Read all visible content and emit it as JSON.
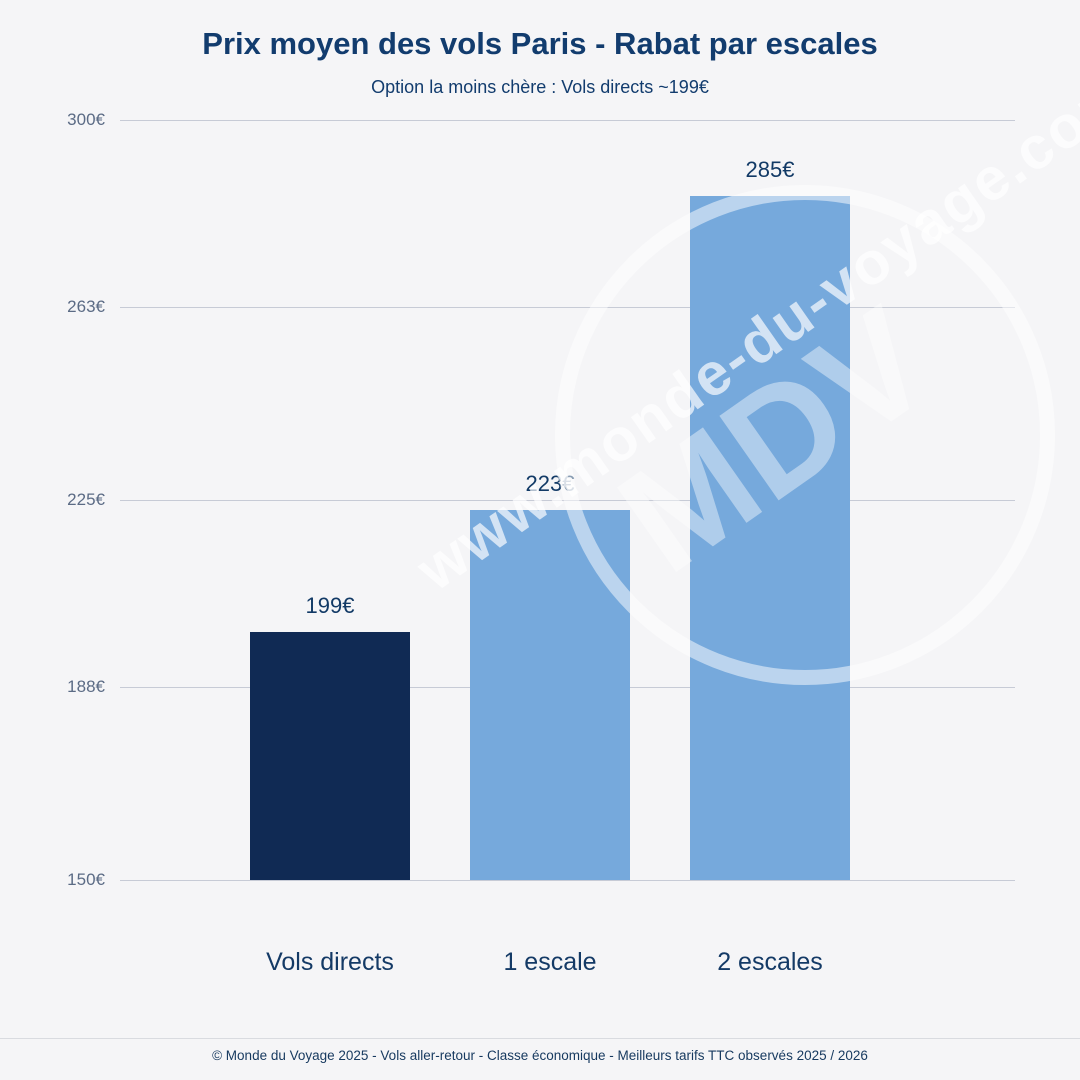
{
  "page": {
    "title": "Prix moyen des vols Paris - Rabat par escales",
    "subtitle": "Option la moins chère : Vols directs ~199€",
    "footer": "© Monde du Voyage 2025 - Vols aller-retour - Classe économique - Meilleurs tarifs TTC observés 2025 / 2026",
    "watermark": {
      "text": "www.monde-du-voyage.com",
      "badge": "MDV"
    }
  },
  "chart_data": {
    "type": "bar",
    "title": "Prix moyen des vols Paris - Rabat par escales",
    "subtitle": "Option la moins chère : Vols directs ~199€",
    "categories": [
      "Vols directs",
      "1 escale",
      "2 escales"
    ],
    "values": [
      199,
      223,
      285
    ],
    "value_labels": [
      "199€",
      "223€",
      "285€"
    ],
    "xlabel": "",
    "ylabel": "",
    "ylim": [
      150,
      300
    ],
    "yticks": [
      150,
      188,
      225,
      263,
      300
    ],
    "ytick_labels": [
      "150€",
      "188€",
      "225€",
      "263€",
      "300€"
    ],
    "grid": true,
    "legend": false,
    "bar_colors": [
      "#102a54",
      "#76a9dc",
      "#76a9dc"
    ],
    "colors": {
      "background": "#f5f5f7",
      "title": "#123c6e",
      "gridline": "#c7cbd6",
      "tick_label": "#5b6b85",
      "bar_dark": "#102a54",
      "bar_light": "#76a9dc"
    }
  }
}
